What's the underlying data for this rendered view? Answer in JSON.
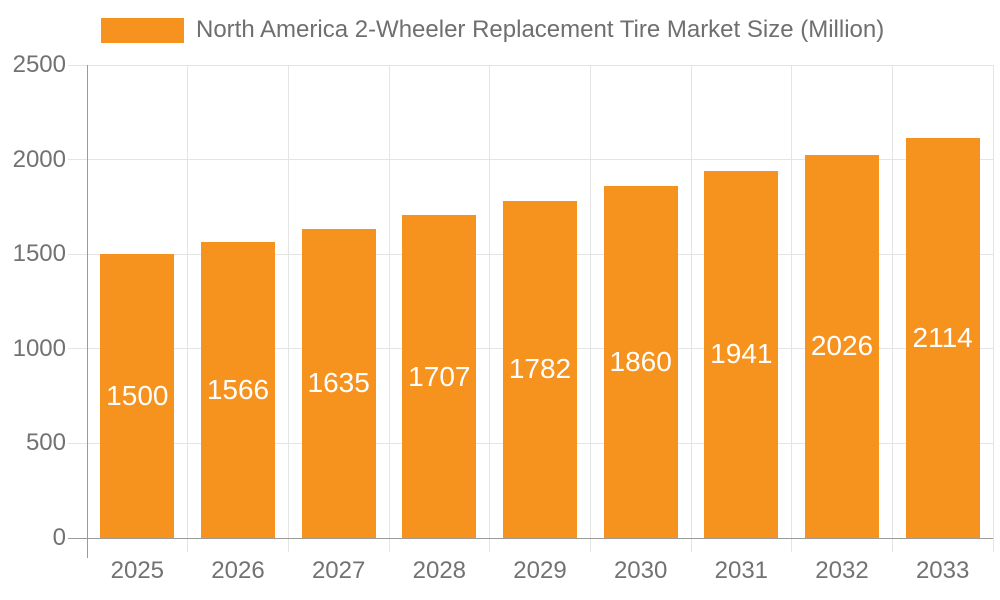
{
  "legend": {
    "label": "North America 2-Wheeler Replacement Tire Market Size (Million)"
  },
  "chart_data": {
    "type": "bar",
    "title": "North America 2-Wheeler Replacement Tire Market Size (Million)",
    "series_name": "North America 2-Wheeler Replacement Tire Market Size (Million)",
    "categories": [
      "2025",
      "2026",
      "2027",
      "2028",
      "2029",
      "2030",
      "2031",
      "2032",
      "2033"
    ],
    "values": [
      1500,
      1566,
      1635,
      1707,
      1782,
      1860,
      1941,
      2026,
      2114
    ],
    "xlabel": "",
    "ylabel": "",
    "ylim": [
      0,
      2500
    ],
    "yticks": [
      0,
      500,
      1000,
      1500,
      2000,
      2500
    ],
    "grid": true,
    "legend_position": "top",
    "bar_color": "#F6921E",
    "value_label_color": "#FFFFFF"
  }
}
